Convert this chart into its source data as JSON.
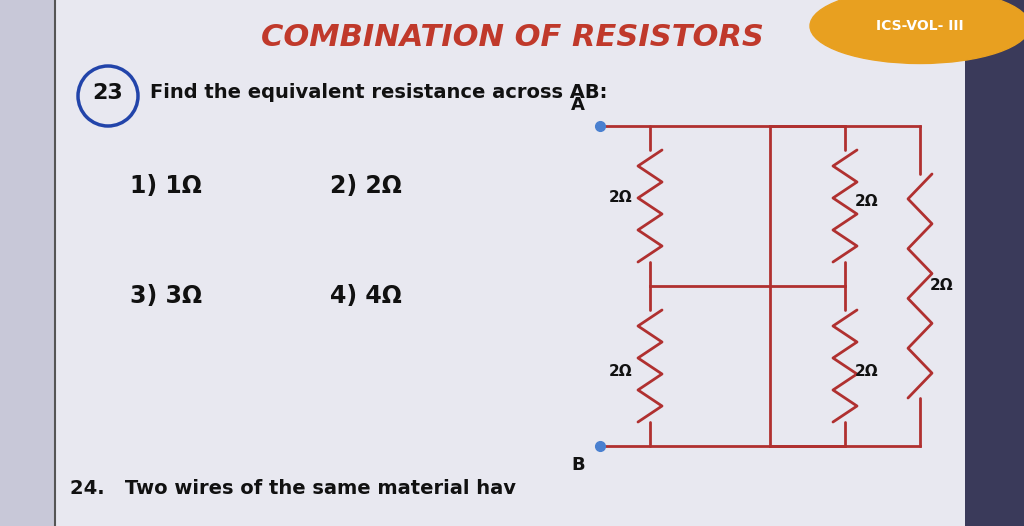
{
  "title": "COMBINATION OF RESISTORS",
  "question_num": "23",
  "question_text": "Find the equivalent resistance across AB:",
  "options": [
    "1) 1Ω",
    "2) 2Ω",
    "3) 3Ω",
    "4) 4Ω"
  ],
  "next_question": "24.   Two wires of the same material hav",
  "bg_color": "#dcdce8",
  "page_color": "#e8e8f0",
  "title_color": "#c0392b",
  "text_color": "#111111",
  "circuit_color": "#b03030",
  "node_color": "#4a80d0",
  "vol_label": "ICS-VOL- III",
  "vol_bg": "#e8a020",
  "border_color": "#555555",
  "circle_color": "#2244aa"
}
